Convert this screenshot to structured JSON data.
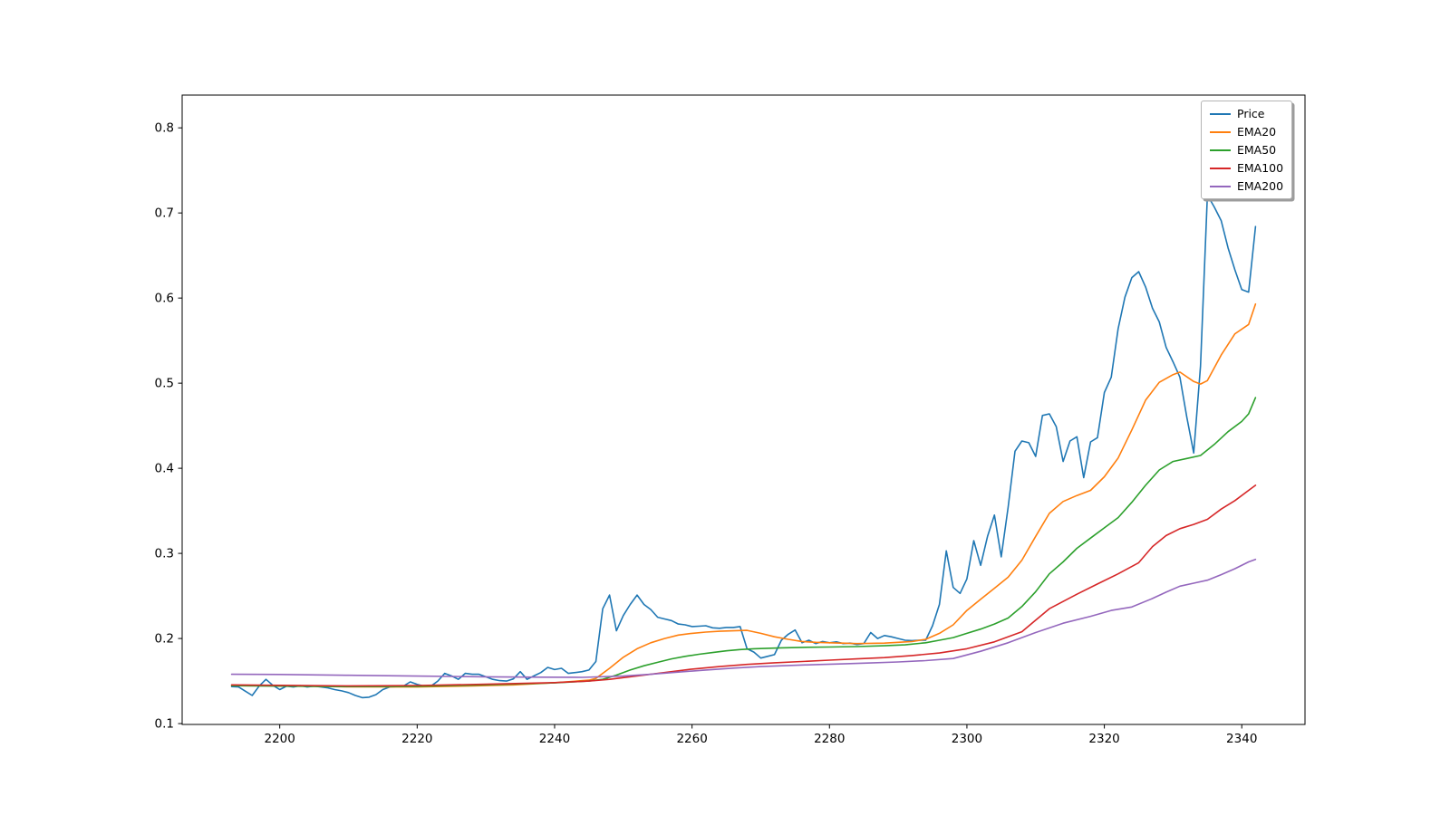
{
  "figure": {
    "background": "#ffffff"
  },
  "axes": {
    "xlim": [
      2185.8,
      2349.2
    ],
    "ylim": [
      0.099,
      0.8385
    ],
    "grid": false,
    "spine_color": "#000000",
    "xticks": {
      "values": [
        2200,
        2220,
        2240,
        2260,
        2280,
        2300,
        2320,
        2340
      ],
      "labels": [
        "2200",
        "2220",
        "2240",
        "2260",
        "2280",
        "2300",
        "2320",
        "2340"
      ]
    },
    "yticks": {
      "values": [
        0.1,
        0.2,
        0.3,
        0.4,
        0.5,
        0.6,
        0.7,
        0.8
      ],
      "labels": [
        "0.1",
        "0.2",
        "0.3",
        "0.4",
        "0.5",
        "0.6",
        "0.7",
        "0.8"
      ]
    }
  },
  "legend": {
    "position": "upper right"
  },
  "chart_data": {
    "type": "line",
    "title": "",
    "xlabel": "",
    "ylabel": "",
    "xlim": [
      2185.8,
      2349.2
    ],
    "ylim": [
      0.099,
      0.8385
    ],
    "grid": false,
    "legend_position": "upper right",
    "series": [
      {
        "name": "Price",
        "color": "#1f77b4",
        "x_start": 2193,
        "x_step": 1,
        "values": [
          0.1435,
          0.143,
          0.138,
          0.133,
          0.144,
          0.152,
          0.145,
          0.14,
          0.144,
          0.143,
          0.1445,
          0.143,
          0.144,
          0.143,
          0.142,
          0.14,
          0.1385,
          0.1365,
          0.133,
          0.1305,
          0.131,
          0.134,
          0.14,
          0.143,
          0.1435,
          0.144,
          0.149,
          0.146,
          0.144,
          0.144,
          0.15,
          0.159,
          0.156,
          0.152,
          0.159,
          0.158,
          0.158,
          0.155,
          0.152,
          0.1505,
          0.15,
          0.1525,
          0.161,
          0.152,
          0.156,
          0.16,
          0.166,
          0.1635,
          0.165,
          0.159,
          0.16,
          0.161,
          0.163,
          0.173,
          0.235,
          0.251,
          0.209,
          0.227,
          0.24,
          0.251,
          0.24,
          0.234,
          0.225,
          0.223,
          0.221,
          0.217,
          0.216,
          0.214,
          0.2145,
          0.215,
          0.2125,
          0.212,
          0.213,
          0.213,
          0.214,
          0.188,
          0.184,
          0.177,
          0.179,
          0.181,
          0.198,
          0.205,
          0.21,
          0.195,
          0.198,
          0.194,
          0.1965,
          0.195,
          0.196,
          0.194,
          0.1945,
          0.193,
          0.194,
          0.207,
          0.2,
          0.2035,
          0.202,
          0.2,
          0.198,
          0.1975,
          0.198,
          0.198,
          0.215,
          0.24,
          0.303,
          0.26,
          0.253,
          0.27,
          0.315,
          0.286,
          0.32,
          0.345,
          0.296,
          0.354,
          0.42,
          0.432,
          0.43,
          0.414,
          0.462,
          0.464,
          0.449,
          0.408,
          0.432,
          0.437,
          0.389,
          0.431,
          0.436,
          0.489,
          0.507,
          0.564,
          0.601,
          0.624,
          0.631,
          0.613,
          0.588,
          0.572,
          0.542,
          0.525,
          0.507,
          0.46,
          0.418,
          0.52,
          0.721,
          0.707,
          0.691,
          0.659,
          0.633,
          0.61,
          0.607,
          0.684
        ]
      },
      {
        "name": "EMA20",
        "color": "#ff7f0e",
        "points": [
          [
            2193,
            0.145
          ],
          [
            2200,
            0.1445
          ],
          [
            2210,
            0.1432
          ],
          [
            2220,
            0.143
          ],
          [
            2228,
            0.1442
          ],
          [
            2234,
            0.1455
          ],
          [
            2240,
            0.148
          ],
          [
            2245,
            0.151
          ],
          [
            2246,
            0.153
          ],
          [
            2248,
            0.165
          ],
          [
            2250,
            0.178
          ],
          [
            2252,
            0.188
          ],
          [
            2254,
            0.195
          ],
          [
            2256,
            0.2
          ],
          [
            2258,
            0.204
          ],
          [
            2260,
            0.206
          ],
          [
            2262,
            0.2075
          ],
          [
            2264,
            0.2085
          ],
          [
            2266,
            0.209
          ],
          [
            2268,
            0.2095
          ],
          [
            2270,
            0.206
          ],
          [
            2272,
            0.202
          ],
          [
            2274,
            0.199
          ],
          [
            2276,
            0.1965
          ],
          [
            2278,
            0.1955
          ],
          [
            2280,
            0.195
          ],
          [
            2284,
            0.194
          ],
          [
            2288,
            0.1945
          ],
          [
            2292,
            0.1965
          ],
          [
            2294,
            0.199
          ],
          [
            2296,
            0.206
          ],
          [
            2298,
            0.216
          ],
          [
            2300,
            0.233
          ],
          [
            2302,
            0.246
          ],
          [
            2304,
            0.259
          ],
          [
            2306,
            0.272
          ],
          [
            2308,
            0.292
          ],
          [
            2310,
            0.32
          ],
          [
            2312,
            0.347
          ],
          [
            2314,
            0.361
          ],
          [
            2316,
            0.368
          ],
          [
            2318,
            0.374
          ],
          [
            2320,
            0.39
          ],
          [
            2322,
            0.412
          ],
          [
            2324,
            0.445
          ],
          [
            2326,
            0.48
          ],
          [
            2328,
            0.501
          ],
          [
            2330,
            0.51
          ],
          [
            2331,
            0.513
          ],
          [
            2333,
            0.502
          ],
          [
            2334,
            0.499
          ],
          [
            2335,
            0.503
          ],
          [
            2337,
            0.533
          ],
          [
            2339,
            0.558
          ],
          [
            2341,
            0.569
          ],
          [
            2342,
            0.593
          ]
        ]
      },
      {
        "name": "EMA50",
        "color": "#2ca02c",
        "points": [
          [
            2193,
            0.1445
          ],
          [
            2200,
            0.144
          ],
          [
            2210,
            0.1435
          ],
          [
            2220,
            0.1438
          ],
          [
            2230,
            0.1455
          ],
          [
            2240,
            0.1478
          ],
          [
            2245,
            0.15
          ],
          [
            2247,
            0.152
          ],
          [
            2249,
            0.157
          ],
          [
            2251,
            0.163
          ],
          [
            2253,
            0.168
          ],
          [
            2255,
            0.172
          ],
          [
            2257,
            0.176
          ],
          [
            2259,
            0.179
          ],
          [
            2261,
            0.1815
          ],
          [
            2263,
            0.1835
          ],
          [
            2265,
            0.1855
          ],
          [
            2267,
            0.187
          ],
          [
            2269,
            0.188
          ],
          [
            2271,
            0.1885
          ],
          [
            2273,
            0.189
          ],
          [
            2276,
            0.1895
          ],
          [
            2280,
            0.19
          ],
          [
            2284,
            0.1905
          ],
          [
            2288,
            0.1915
          ],
          [
            2291,
            0.1925
          ],
          [
            2294,
            0.195
          ],
          [
            2296,
            0.198
          ],
          [
            2298,
            0.201
          ],
          [
            2300,
            0.206
          ],
          [
            2302,
            0.211
          ],
          [
            2304,
            0.217
          ],
          [
            2306,
            0.224
          ],
          [
            2308,
            0.2375
          ],
          [
            2310,
            0.255
          ],
          [
            2312,
            0.276
          ],
          [
            2314,
            0.29
          ],
          [
            2316,
            0.306
          ],
          [
            2318,
            0.318
          ],
          [
            2320,
            0.33
          ],
          [
            2322,
            0.342
          ],
          [
            2324,
            0.36
          ],
          [
            2326,
            0.38
          ],
          [
            2328,
            0.398
          ],
          [
            2330,
            0.408
          ],
          [
            2332,
            0.4115
          ],
          [
            2334,
            0.415
          ],
          [
            2336,
            0.428
          ],
          [
            2338,
            0.443
          ],
          [
            2340,
            0.455
          ],
          [
            2341,
            0.464
          ],
          [
            2342,
            0.483
          ]
        ]
      },
      {
        "name": "EMA100",
        "color": "#d62728",
        "points": [
          [
            2193,
            0.1455
          ],
          [
            2200,
            0.145
          ],
          [
            2210,
            0.1443
          ],
          [
            2220,
            0.1448
          ],
          [
            2230,
            0.1462
          ],
          [
            2240,
            0.1482
          ],
          [
            2245,
            0.15
          ],
          [
            2248,
            0.152
          ],
          [
            2252,
            0.156
          ],
          [
            2256,
            0.16
          ],
          [
            2260,
            0.164
          ],
          [
            2264,
            0.167
          ],
          [
            2268,
            0.1695
          ],
          [
            2272,
            0.1715
          ],
          [
            2276,
            0.173
          ],
          [
            2280,
            0.1745
          ],
          [
            2284,
            0.176
          ],
          [
            2288,
            0.1775
          ],
          [
            2292,
            0.18
          ],
          [
            2296,
            0.183
          ],
          [
            2300,
            0.188
          ],
          [
            2304,
            0.196
          ],
          [
            2308,
            0.208
          ],
          [
            2312,
            0.235
          ],
          [
            2316,
            0.252
          ],
          [
            2319,
            0.264
          ],
          [
            2322,
            0.276
          ],
          [
            2325,
            0.289
          ],
          [
            2327,
            0.308
          ],
          [
            2329,
            0.321
          ],
          [
            2331,
            0.329
          ],
          [
            2333,
            0.334
          ],
          [
            2335,
            0.34
          ],
          [
            2337,
            0.352
          ],
          [
            2339,
            0.362
          ],
          [
            2341,
            0.374
          ],
          [
            2342,
            0.38
          ]
        ]
      },
      {
        "name": "EMA200",
        "color": "#9467bd",
        "points": [
          [
            2193,
            0.158
          ],
          [
            2200,
            0.1577
          ],
          [
            2210,
            0.1568
          ],
          [
            2220,
            0.1558
          ],
          [
            2230,
            0.155
          ],
          [
            2238,
            0.1545
          ],
          [
            2244,
            0.1543
          ],
          [
            2250,
            0.1558
          ],
          [
            2254,
            0.158
          ],
          [
            2258,
            0.1605
          ],
          [
            2262,
            0.163
          ],
          [
            2266,
            0.1652
          ],
          [
            2270,
            0.167
          ],
          [
            2274,
            0.1683
          ],
          [
            2278,
            0.1693
          ],
          [
            2282,
            0.1702
          ],
          [
            2286,
            0.1712
          ],
          [
            2290,
            0.1724
          ],
          [
            2294,
            0.174
          ],
          [
            2298,
            0.1765
          ],
          [
            2302,
            0.185
          ],
          [
            2306,
            0.195
          ],
          [
            2310,
            0.207
          ],
          [
            2314,
            0.218
          ],
          [
            2318,
            0.226
          ],
          [
            2321,
            0.233
          ],
          [
            2324,
            0.237
          ],
          [
            2327,
            0.247
          ],
          [
            2329,
            0.2545
          ],
          [
            2331,
            0.2615
          ],
          [
            2333,
            0.265
          ],
          [
            2335,
            0.2685
          ],
          [
            2337,
            0.275
          ],
          [
            2339,
            0.282
          ],
          [
            2341,
            0.29
          ],
          [
            2342,
            0.293
          ]
        ]
      }
    ]
  }
}
